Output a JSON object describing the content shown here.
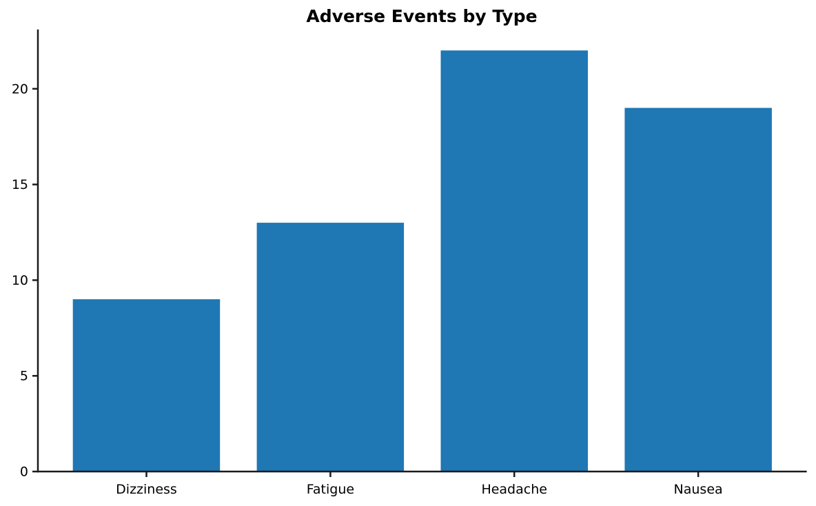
{
  "figure": {
    "background": "#ffffff"
  },
  "chart_data": {
    "type": "bar",
    "title": "Adverse Events by Type",
    "categories": [
      "Dizziness",
      "Fatigue",
      "Headache",
      "Nausea"
    ],
    "values": [
      9,
      13,
      22,
      19
    ],
    "xlabel": "",
    "ylabel": "",
    "yticks": [
      0,
      5,
      10,
      15,
      20
    ],
    "ylim": [
      0,
      23.1
    ],
    "bar_color": "#1f77b4",
    "axis_color": "#1a1a1a",
    "text_color": "#000000",
    "grid": false,
    "legend": false,
    "spines": [
      "left",
      "bottom"
    ]
  }
}
